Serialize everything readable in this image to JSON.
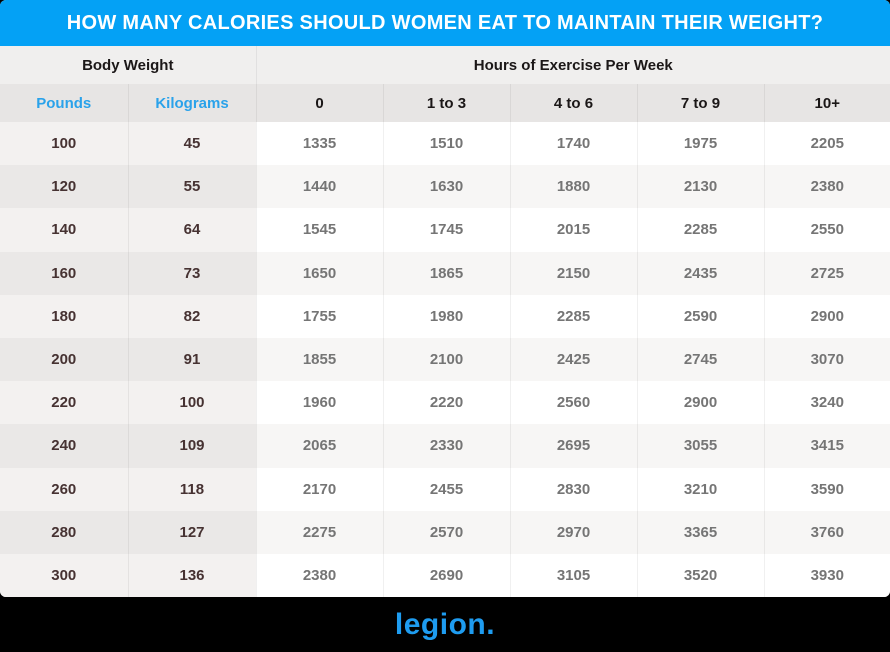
{
  "title": "HOW MANY CALORIES SHOULD WOMEN EAT TO MAINTAIN THEIR WEIGHT?",
  "table": {
    "group_headers": {
      "body_weight": "Body Weight",
      "exercise": "Hours of Exercise Per Week"
    },
    "column_headers": [
      "Pounds",
      "Kilograms",
      "0",
      "1 to 3",
      "4 to 6",
      "7 to 9",
      "10+"
    ],
    "rows": [
      {
        "pounds": "100",
        "kilograms": "45",
        "values": [
          "1335",
          "1510",
          "1740",
          "1975",
          "2205"
        ]
      },
      {
        "pounds": "120",
        "kilograms": "55",
        "values": [
          "1440",
          "1630",
          "1880",
          "2130",
          "2380"
        ]
      },
      {
        "pounds": "140",
        "kilograms": "64",
        "values": [
          "1545",
          "1745",
          "2015",
          "2285",
          "2550"
        ]
      },
      {
        "pounds": "160",
        "kilograms": "73",
        "values": [
          "1650",
          "1865",
          "2150",
          "2435",
          "2725"
        ]
      },
      {
        "pounds": "180",
        "kilograms": "82",
        "values": [
          "1755",
          "1980",
          "2285",
          "2590",
          "2900"
        ]
      },
      {
        "pounds": "200",
        "kilograms": "91",
        "values": [
          "1855",
          "2100",
          "2425",
          "2745",
          "3070"
        ]
      },
      {
        "pounds": "220",
        "kilograms": "100",
        "values": [
          "1960",
          "2220",
          "2560",
          "2900",
          "3240"
        ]
      },
      {
        "pounds": "240",
        "kilograms": "109",
        "values": [
          "2065",
          "2330",
          "2695",
          "3055",
          "3415"
        ]
      },
      {
        "pounds": "260",
        "kilograms": "118",
        "values": [
          "2170",
          "2455",
          "2830",
          "3210",
          "3590"
        ]
      },
      {
        "pounds": "280",
        "kilograms": "127",
        "values": [
          "2275",
          "2570",
          "2970",
          "3365",
          "3760"
        ]
      },
      {
        "pounds": "300",
        "kilograms": "136",
        "values": [
          "2380",
          "2690",
          "3105",
          "3520",
          "3930"
        ]
      }
    ]
  },
  "footer": {
    "logo_text": "legion."
  },
  "colors": {
    "header_bar": "#04a1f5",
    "link_blue": "#2aa2ea",
    "logo_blue": "#1e9cf0",
    "weight_text": "#463232",
    "calorie_text": "#757575",
    "footer_bg": "#000000"
  },
  "chart_data": {
    "type": "table",
    "title": "HOW MANY CALORIES SHOULD WOMEN EAT TO MAINTAIN THEIR WEIGHT?",
    "row_header_group": "Body Weight",
    "column_group": "Hours of Exercise Per Week",
    "columns": [
      "Pounds",
      "Kilograms",
      "0",
      "1 to 3",
      "4 to 6",
      "7 to 9",
      "10+"
    ],
    "rows": [
      [
        100,
        45,
        1335,
        1510,
        1740,
        1975,
        2205
      ],
      [
        120,
        55,
        1440,
        1630,
        1880,
        2130,
        2380
      ],
      [
        140,
        64,
        1545,
        1745,
        2015,
        2285,
        2550
      ],
      [
        160,
        73,
        1650,
        1865,
        2150,
        2435,
        2725
      ],
      [
        180,
        82,
        1755,
        1980,
        2285,
        2590,
        2900
      ],
      [
        200,
        91,
        1855,
        2100,
        2425,
        2745,
        3070
      ],
      [
        220,
        100,
        1960,
        2220,
        2560,
        2900,
        3240
      ],
      [
        240,
        109,
        2065,
        2330,
        2695,
        3055,
        3415
      ],
      [
        260,
        118,
        2170,
        2455,
        2830,
        3210,
        3590
      ],
      [
        280,
        127,
        2275,
        2570,
        2970,
        3365,
        3760
      ],
      [
        300,
        136,
        2380,
        2690,
        3105,
        3520,
        3930
      ]
    ]
  }
}
